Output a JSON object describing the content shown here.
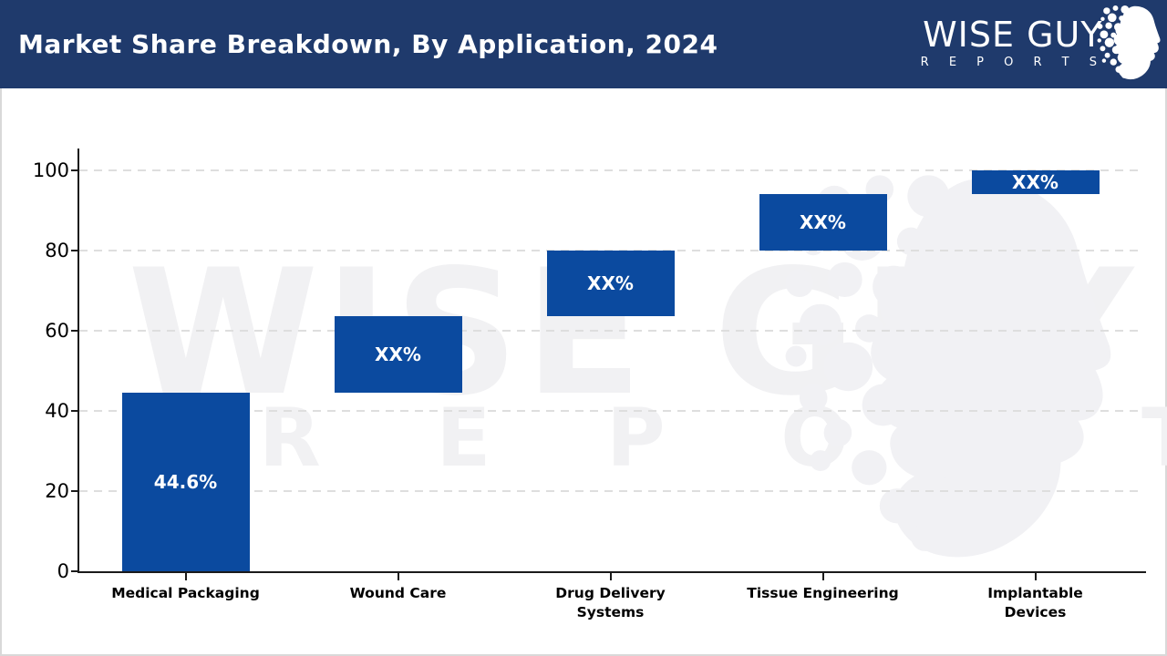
{
  "header": {
    "title": "Market Share Breakdown, By Application, 2024",
    "logo": {
      "name": "WISE GUY",
      "sub": "R E P O R T S"
    }
  },
  "watermark": {
    "line1": "WISE GUY",
    "line2": "REPORTS"
  },
  "colors": {
    "header_bg": "#1f3a6c",
    "bar": "#0b4a9f",
    "bar_label": "#ffffff",
    "grid": "#dedede",
    "watermark": "#f1f1f3",
    "axis": "#1a1a1a"
  },
  "chart_data": {
    "type": "bar",
    "variant": "waterfall",
    "title": "Market Share Breakdown, By Application, 2024",
    "categories": [
      "Medical Packaging",
      "Wound Care",
      "Drug Delivery\nSystems",
      "Tissue Engineering",
      "Implantable\nDevices"
    ],
    "series": [
      {
        "name": "Market Share (%)",
        "segments": [
          {
            "category": "Medical Packaging",
            "start": 0,
            "end": 44.6,
            "label": "44.6%"
          },
          {
            "category": "Wound Care",
            "start": 44.6,
            "end": 63.6,
            "label": "XX%"
          },
          {
            "category": "Drug Delivery Systems",
            "start": 63.6,
            "end": 80.0,
            "label": "XX%"
          },
          {
            "category": "Tissue Engineering",
            "start": 80.0,
            "end": 94.0,
            "label": "XX%"
          },
          {
            "category": "Implantable Devices",
            "start": 94.0,
            "end": 100.0,
            "label": "XX%"
          }
        ]
      }
    ],
    "ylim": [
      0,
      105
    ],
    "yticks": [
      0,
      20,
      40,
      60,
      80,
      100
    ],
    "grid": "horizontal-dashed",
    "legend_position": "none"
  }
}
